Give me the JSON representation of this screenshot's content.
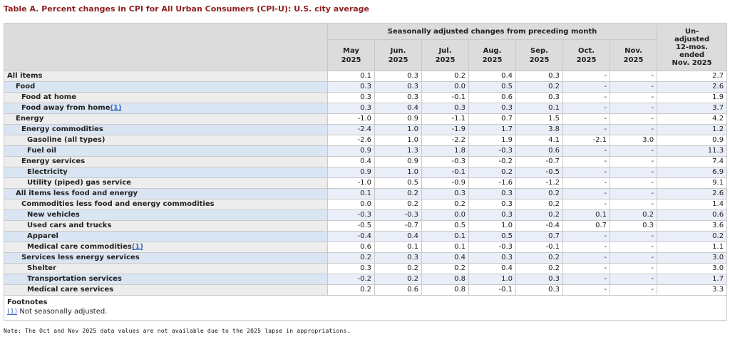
{
  "title": "Table A. Percent changes in CPI for All Urban Consumers (CPI-U): U.S. city average",
  "colors": {
    "title_red": "#8e1f1f",
    "link_blue": "#3b6bc6",
    "header_gray": "#dcdcdc",
    "row_gray_label": "#ededed",
    "row_blue_label": "#d9e5f3",
    "row_blue_value": "#e9eef8"
  },
  "table": {
    "group_header": "Seasonally adjusted changes from preceding month",
    "unadjusted_header_lines": [
      "Un-",
      "adjusted",
      "12-mos.",
      "ended",
      "Nov. 2025"
    ],
    "month_columns": [
      [
        "May",
        "2025"
      ],
      [
        "Jun.",
        "2025"
      ],
      [
        "Jul.",
        "2025"
      ],
      [
        "Aug.",
        "2025"
      ],
      [
        "Sep.",
        "2025"
      ],
      [
        "Oct.",
        "2025"
      ],
      [
        "Nov.",
        "2025"
      ]
    ],
    "rows": [
      {
        "label": "All items",
        "fn": "",
        "indent": 0,
        "values": [
          "0.1",
          "0.3",
          "0.2",
          "0.4",
          "0.3",
          "-",
          "-",
          "2.7"
        ]
      },
      {
        "label": "Food",
        "fn": "",
        "indent": 1,
        "values": [
          "0.3",
          "0.3",
          "0.0",
          "0.5",
          "0.2",
          "-",
          "-",
          "2.6"
        ]
      },
      {
        "label": "Food at home",
        "fn": "",
        "indent": 2,
        "values": [
          "0.3",
          "0.3",
          "-0.1",
          "0.6",
          "0.3",
          "-",
          "-",
          "1.9"
        ]
      },
      {
        "label": "Food away from home",
        "fn": "(1)",
        "indent": 2,
        "values": [
          "0.3",
          "0.4",
          "0.3",
          "0.3",
          "0.1",
          "-",
          "-",
          "3.7"
        ]
      },
      {
        "label": "Energy",
        "fn": "",
        "indent": 1,
        "values": [
          "-1.0",
          "0.9",
          "-1.1",
          "0.7",
          "1.5",
          "-",
          "-",
          "4.2"
        ]
      },
      {
        "label": "Energy commodities",
        "fn": "",
        "indent": 2,
        "values": [
          "-2.4",
          "1.0",
          "-1.9",
          "1.7",
          "3.8",
          "-",
          "-",
          "1.2"
        ]
      },
      {
        "label": "Gasoline (all types)",
        "fn": "",
        "indent": 3,
        "values": [
          "-2.6",
          "1.0",
          "-2.2",
          "1.9",
          "4.1",
          "-2.1",
          "3.0",
          "0.9"
        ]
      },
      {
        "label": "Fuel oil",
        "fn": "",
        "indent": 3,
        "values": [
          "0.9",
          "1.3",
          "1.8",
          "-0.3",
          "0.6",
          "-",
          "-",
          "11.3"
        ]
      },
      {
        "label": "Energy services",
        "fn": "",
        "indent": 2,
        "values": [
          "0.4",
          "0.9",
          "-0.3",
          "-0.2",
          "-0.7",
          "-",
          "-",
          "7.4"
        ]
      },
      {
        "label": "Electricity",
        "fn": "",
        "indent": 3,
        "values": [
          "0.9",
          "1.0",
          "-0.1",
          "0.2",
          "-0.5",
          "-",
          "-",
          "6.9"
        ]
      },
      {
        "label": "Utility (piped) gas service",
        "fn": "",
        "indent": 3,
        "values": [
          "-1.0",
          "0.5",
          "-0.9",
          "-1.6",
          "-1.2",
          "-",
          "-",
          "9.1"
        ]
      },
      {
        "label": "All items less food and energy",
        "fn": "",
        "indent": 1,
        "values": [
          "0.1",
          "0.2",
          "0.3",
          "0.3",
          "0.2",
          "-",
          "-",
          "2.6"
        ]
      },
      {
        "label": "Commodities less food and energy commodities",
        "fn": "",
        "indent": 2,
        "values": [
          "0.0",
          "0.2",
          "0.2",
          "0.3",
          "0.2",
          "-",
          "-",
          "1.4"
        ]
      },
      {
        "label": "New vehicles",
        "fn": "",
        "indent": 3,
        "values": [
          "-0.3",
          "-0.3",
          "0.0",
          "0.3",
          "0.2",
          "0.1",
          "0.2",
          "0.6"
        ]
      },
      {
        "label": "Used cars and trucks",
        "fn": "",
        "indent": 3,
        "values": [
          "-0.5",
          "-0.7",
          "0.5",
          "1.0",
          "-0.4",
          "0.7",
          "0.3",
          "3.6"
        ]
      },
      {
        "label": "Apparel",
        "fn": "",
        "indent": 3,
        "values": [
          "-0.4",
          "0.4",
          "0.1",
          "0.5",
          "0.7",
          "-",
          "-",
          "0.2"
        ]
      },
      {
        "label": "Medical care commodities",
        "fn": "(1)",
        "indent": 3,
        "values": [
          "0.6",
          "0.1",
          "0.1",
          "-0.3",
          "-0.1",
          "-",
          "-",
          "1.1"
        ]
      },
      {
        "label": "Services less energy services",
        "fn": "",
        "indent": 2,
        "values": [
          "0.2",
          "0.3",
          "0.4",
          "0.3",
          "0.2",
          "-",
          "-",
          "3.0"
        ]
      },
      {
        "label": "Shelter",
        "fn": "",
        "indent": 3,
        "values": [
          "0.3",
          "0.2",
          "0.2",
          "0.4",
          "0.2",
          "-",
          "-",
          "3.0"
        ]
      },
      {
        "label": "Transportation services",
        "fn": "",
        "indent": 3,
        "values": [
          "-0.2",
          "0.2",
          "0.8",
          "1.0",
          "0.3",
          "-",
          "-",
          "1.7"
        ]
      },
      {
        "label": "Medical care services",
        "fn": "",
        "indent": 3,
        "values": [
          "0.2",
          "0.6",
          "0.8",
          "-0.1",
          "0.3",
          "-",
          "-",
          "3.3"
        ]
      }
    ]
  },
  "footnotes": {
    "heading": "Footnotes",
    "marker": "(1)",
    "text": "Not seasonally adjusted."
  },
  "note": "Note: The Oct and Nov 2025 data values are not available due to the 2025 lapse in appropriations."
}
